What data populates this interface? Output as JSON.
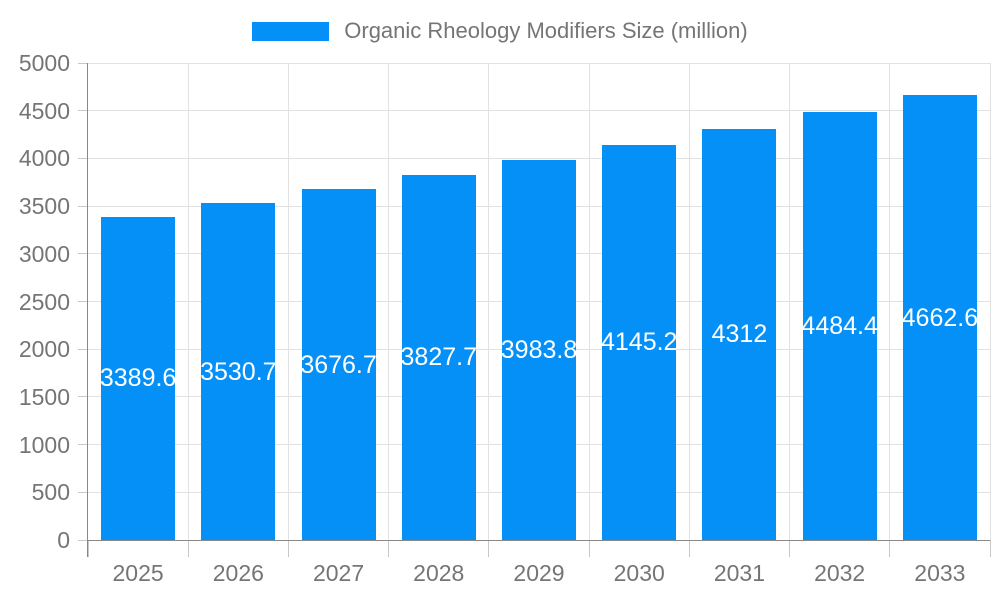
{
  "legend": {
    "label": "Organic Rheology Modifiers Size (million)"
  },
  "chart_data": {
    "type": "bar",
    "title": "Organic Rheology Modifiers Size (million)",
    "categories": [
      "2025",
      "2026",
      "2027",
      "2028",
      "2029",
      "2030",
      "2031",
      "2032",
      "2033"
    ],
    "series": [
      {
        "name": "Organic Rheology Modifiers Size (million)",
        "values": [
          3389.6,
          3530.7,
          3676.7,
          3827.7,
          3983.8,
          4145.2,
          4312,
          4484.4,
          4662.6
        ]
      }
    ],
    "value_labels": [
      "3389.6",
      "3530.7",
      "3676.7",
      "3827.7",
      "3983.8",
      "4145.2",
      "4312",
      "4484.4",
      "4662.6"
    ],
    "xlabel": "",
    "ylabel": "",
    "ylim": [
      0,
      5000
    ],
    "ytick_step": 500,
    "ytick_labels": [
      "0",
      "500",
      "1000",
      "1500",
      "2000",
      "2500",
      "3000",
      "3500",
      "4000",
      "4500",
      "5000"
    ],
    "grid": true,
    "legend_position": "top",
    "colors": {
      "bar": "#0590f8",
      "gridline": "#e2e2e2",
      "axis_line": "#888888",
      "tick": "#c8c8c8",
      "axis_text": "#757575",
      "value_text": "#ffffff",
      "background": "#ffffff"
    }
  }
}
